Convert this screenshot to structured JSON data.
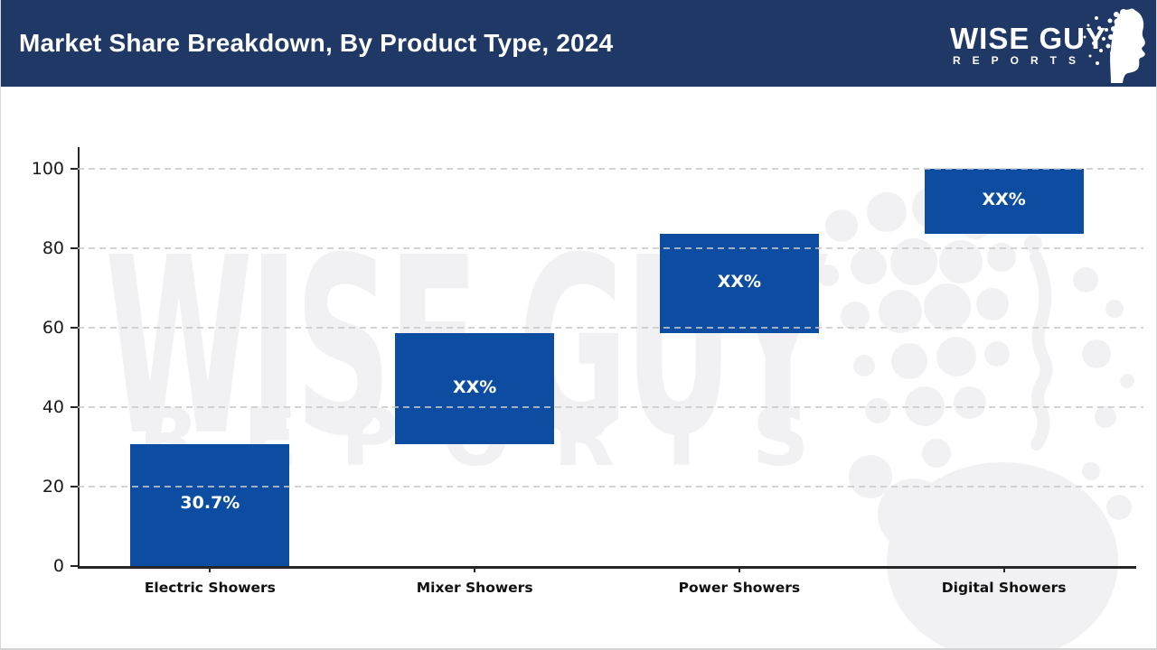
{
  "header": {
    "title": "Market Share Breakdown, By Product Type, 2024",
    "bg_color": "#1F3865",
    "logo": {
      "name": "WISE GUY",
      "sub": "REPORTS"
    }
  },
  "watermark": {
    "primary": "WISE GUY",
    "secondary": "REPORTS"
  },
  "chart_data": {
    "type": "bar",
    "subtype": "waterfall",
    "title": "Market Share Breakdown, By Product Type, 2024",
    "categories": [
      "Electric Showers",
      "Mixer Showers",
      "Power Showers",
      "Digital Showers"
    ],
    "bars": [
      {
        "category": "Electric Showers",
        "start": 0,
        "end": 30.7,
        "label": "30.7%"
      },
      {
        "category": "Mixer Showers",
        "start": 30.7,
        "end": 58.6,
        "label": "XX%"
      },
      {
        "category": "Power Showers",
        "start": 58.6,
        "end": 83.6,
        "label": "XX%"
      },
      {
        "category": "Digital Showers",
        "start": 83.6,
        "end": 100,
        "label": "XX%"
      }
    ],
    "yticks": [
      0,
      20,
      40,
      60,
      80,
      100
    ],
    "ylim": [
      0,
      105
    ],
    "unit": "%",
    "bar_color": "#0C4DA2",
    "bar_label_color": "#ffffff",
    "grid": "dashed-horizontal, drawn over bars",
    "legend": "none",
    "xlabel": "",
    "ylabel": ""
  },
  "colors": {
    "header_bg": "#1F3865",
    "bar": "#0C4DA2",
    "axis": "#262626",
    "gridline": "#d9d9d9",
    "watermark": "#f1f1f3",
    "background": "#ffffff"
  }
}
